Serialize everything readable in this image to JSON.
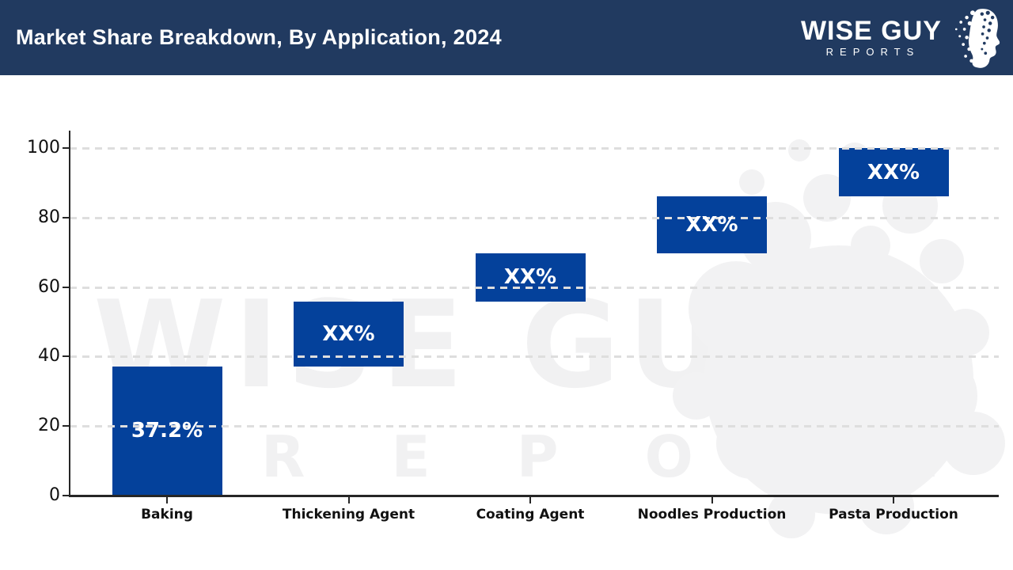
{
  "header": {
    "title": "Market Share Breakdown, By Application, 2024",
    "logo": {
      "line1": "WISE GUY",
      "line2": "REPORTS",
      "head_icon": "dotted-profile-head"
    }
  },
  "watermark": {
    "line1": "WISE GUY",
    "line2": "R E P O R T S"
  },
  "chart_data": {
    "type": "bar",
    "variant": "waterfall",
    "title": "Market Share Breakdown, By Application, 2024",
    "categories": [
      "Baking",
      "Thickening Agent",
      "Coating Agent",
      "Noodles Production",
      "Pasta Production"
    ],
    "segments": [
      {
        "category": "Baking",
        "start": 0,
        "end": 37.2,
        "label": "37.2%"
      },
      {
        "category": "Thickening Agent",
        "start": 37.2,
        "end": 55.8,
        "label": "XX%"
      },
      {
        "category": "Coating Agent",
        "start": 55.8,
        "end": 69.8,
        "label": "XX%"
      },
      {
        "category": "Noodles Production",
        "start": 69.8,
        "end": 86.0,
        "label": "XX%"
      },
      {
        "category": "Pasta Production",
        "start": 86.0,
        "end": 100.0,
        "label": "XX%"
      }
    ],
    "ylim": [
      0,
      100
    ],
    "yticks": [
      0,
      20,
      40,
      60,
      80,
      100
    ],
    "xlabel": "",
    "ylabel": "",
    "grid": "horizontal-dashed",
    "legend": "none",
    "bar_color": "#04419b",
    "bar_label_color": "#ffffff"
  },
  "colors": {
    "header_bg": "#213a60",
    "chart_bg": "#ffffff",
    "bar": "#04419b",
    "gridline": "#dedede",
    "axis": "#262626",
    "watermark": "#f1f1f2"
  }
}
